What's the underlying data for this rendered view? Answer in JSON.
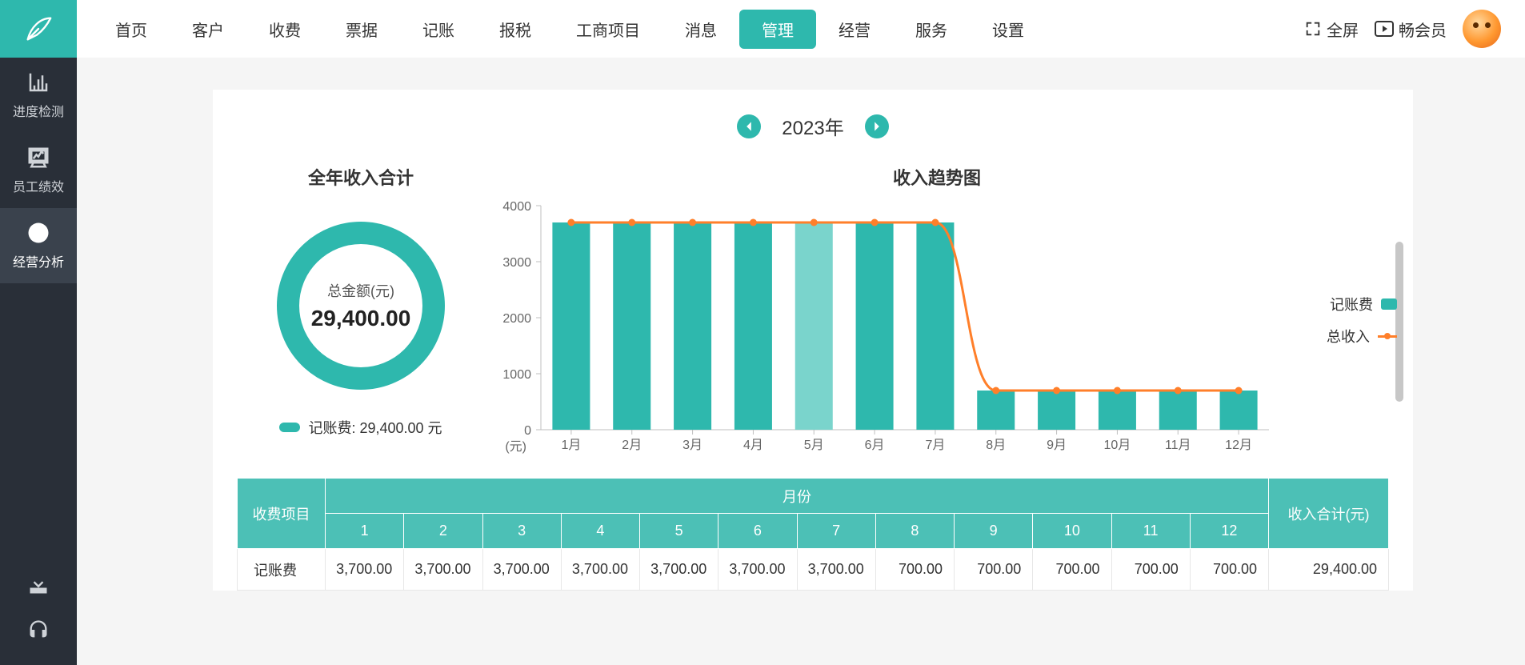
{
  "nav": {
    "items": [
      "首页",
      "客户",
      "收费",
      "票据",
      "记账",
      "报税",
      "工商项目",
      "消息",
      "管理",
      "经营",
      "服务",
      "设置"
    ],
    "active": "管理"
  },
  "topRight": {
    "fullscreen": "全屏",
    "member": "畅会员"
  },
  "sidebar": {
    "items": [
      {
        "label": "进度检测",
        "name": "progress-check"
      },
      {
        "label": "员工绩效",
        "name": "employee-perf"
      },
      {
        "label": "经营分析",
        "name": "business-analysis"
      }
    ],
    "active": "经营分析"
  },
  "year": {
    "value": "2023年"
  },
  "summary": {
    "title": "全年收入合计",
    "ring_label": "总金额(元)",
    "ring_amount": "29,400.00",
    "legend_text": "记账费: 29,400.00 元"
  },
  "chart": {
    "title": "收入趋势图",
    "type": "bar+line",
    "y_label": "(元)",
    "ylim": [
      0,
      4000
    ],
    "ytick_step": 1000,
    "yticks": [
      "0",
      "1000",
      "2000",
      "3000",
      "4000"
    ],
    "categories": [
      "1月",
      "2月",
      "3月",
      "4月",
      "5月",
      "6月",
      "7月",
      "8月",
      "9月",
      "10月",
      "11月",
      "12月"
    ],
    "bar_values": [
      3700,
      3700,
      3700,
      3700,
      3700,
      3700,
      3700,
      700,
      700,
      700,
      700,
      700
    ],
    "line_values": [
      3700,
      3700,
      3700,
      3700,
      3700,
      3700,
      3700,
      700,
      700,
      700,
      700,
      700
    ],
    "bar_color": "#2eb8ad",
    "bar_highlight_color": "#7ad4cc",
    "highlight_index": 4,
    "line_color": "#ff7f2a",
    "background_color": "#ffffff",
    "axis_color": "#bfbfbf",
    "tick_font_size": 16,
    "legend": {
      "bar": "记账费",
      "line": "总收入"
    }
  },
  "table": {
    "col1_header": "收费项目",
    "group_header": "月份",
    "month_cols": [
      "1",
      "2",
      "3",
      "4",
      "5",
      "6",
      "7",
      "8",
      "9",
      "10",
      "11",
      "12"
    ],
    "total_header": "收入合计(元)",
    "rows": [
      {
        "name": "记账费",
        "cells": [
          "3,700.00",
          "3,700.00",
          "3,700.00",
          "3,700.00",
          "3,700.00",
          "3,700.00",
          "3,700.00",
          "700.00",
          "700.00",
          "700.00",
          "700.00",
          "700.00"
        ],
        "total": "29,400.00"
      }
    ]
  },
  "colors": {
    "primary": "#2eb8ad",
    "sidebar_bg": "#292f38",
    "orange": "#ff7f2a"
  }
}
